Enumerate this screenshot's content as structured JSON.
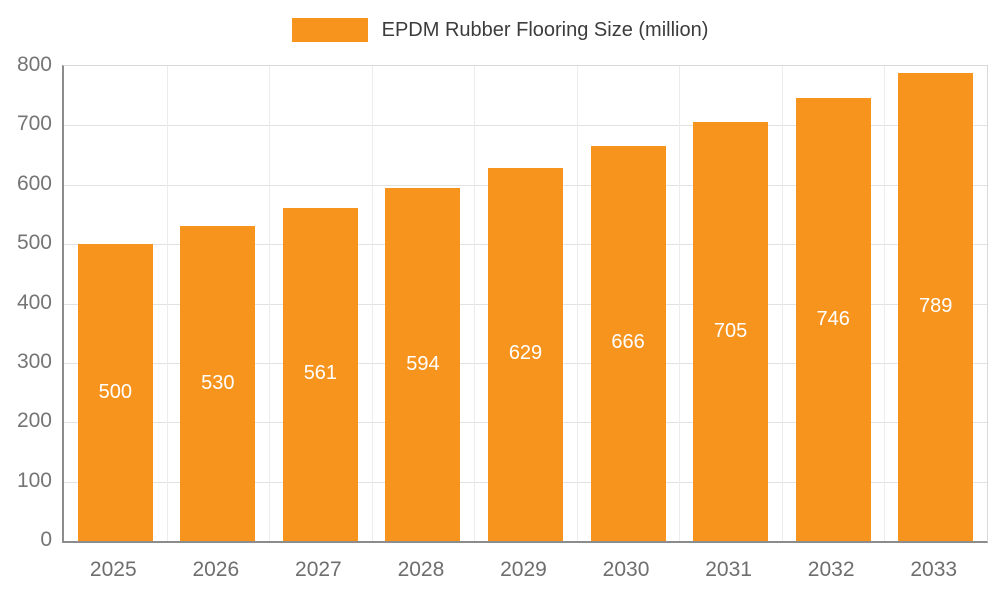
{
  "chart_data": {
    "type": "bar",
    "title": "EPDM Rubber Flooring Size (million)",
    "categories": [
      "2025",
      "2026",
      "2027",
      "2028",
      "2029",
      "2030",
      "2031",
      "2032",
      "2033"
    ],
    "values": [
      500,
      530,
      561,
      594,
      629,
      666,
      705,
      746,
      789
    ],
    "xlabel": "",
    "ylabel": "",
    "ylim": [
      0,
      800
    ],
    "ytick_step": 100,
    "grid": true,
    "legend_position": "top",
    "bar_color": "#F7941E",
    "bar_label_color": "#FFFFFF",
    "axis_text_color": "#757575",
    "title_color": "#3C3C3C"
  }
}
